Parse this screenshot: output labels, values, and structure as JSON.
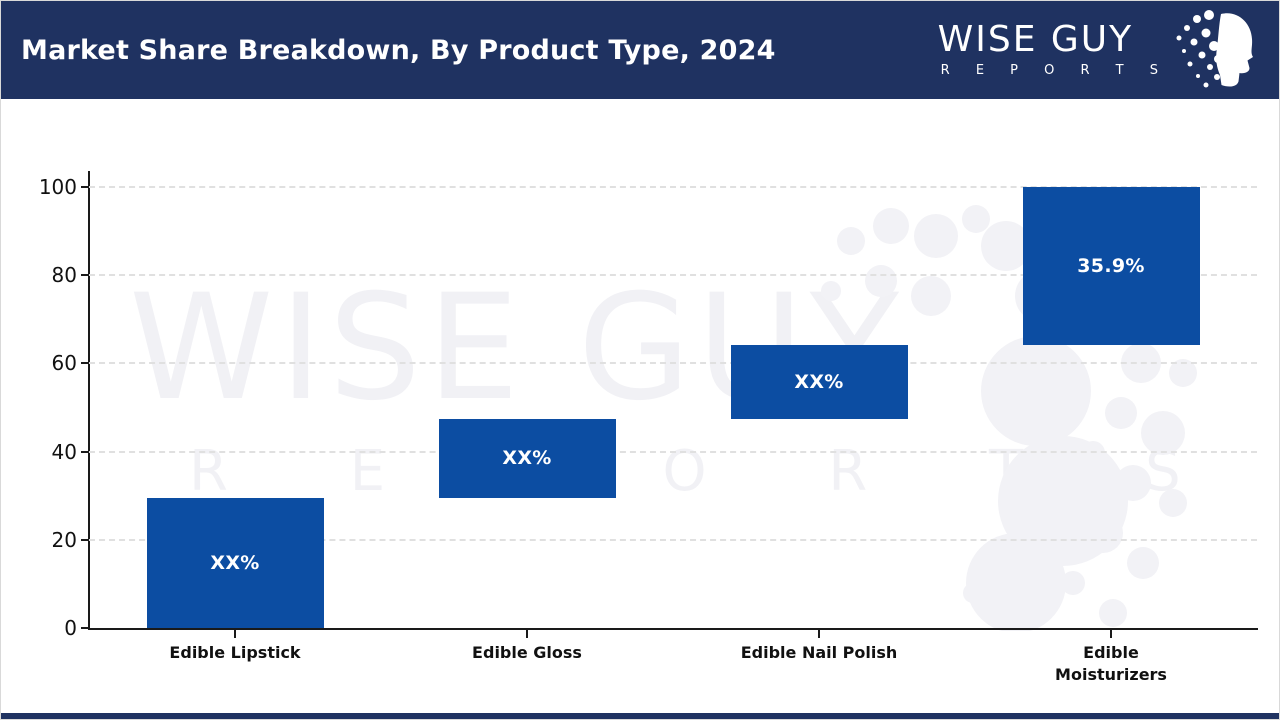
{
  "header": {
    "title": "Market Share Breakdown, By Product Type, 2024",
    "bg_color": "#1F3261",
    "logo": {
      "line1": "WISE GUY",
      "line2": "R E P O R T S"
    }
  },
  "watermark": {
    "line1": "WISE GUY",
    "line2": "R E P O R T S"
  },
  "chart_data": {
    "type": "bar",
    "variant": "stacked-waterfall",
    "title": "Market Share Breakdown, By Product Type, 2024",
    "categories": [
      "Edible Lipstick",
      "Edible Gloss",
      "Edible Nail Polish",
      "Edible Moisturizers"
    ],
    "bars": [
      {
        "category": "Edible Lipstick",
        "from": 0,
        "to": 29.5,
        "value_label": "XX%",
        "approx_segment_pct": 29.5,
        "label_lines": [
          "Edible Lipstick"
        ]
      },
      {
        "category": "Edible Gloss",
        "from": 29.5,
        "to": 47.5,
        "value_label": "XX%",
        "approx_segment_pct": 18.0,
        "label_lines": [
          "Edible Gloss"
        ]
      },
      {
        "category": "Edible Nail Polish",
        "from": 47.5,
        "to": 64.1,
        "value_label": "XX%",
        "approx_segment_pct": 16.6,
        "label_lines": [
          "Edible Nail Polish"
        ]
      },
      {
        "category": "Edible Moisturizers",
        "from": 64.1,
        "to": 100,
        "value_label": "35.9%",
        "approx_segment_pct": 35.9,
        "label_lines": [
          "Edible",
          "Moisturizers"
        ]
      }
    ],
    "yticks": [
      0,
      20,
      40,
      60,
      80,
      100
    ],
    "ylim": [
      0,
      100
    ],
    "grid": "horizontal dashed",
    "legend": "none",
    "bar_color": "#0C4DA2",
    "grid_color": "#e0e0e0",
    "axis_color": "#1a1a1a"
  }
}
